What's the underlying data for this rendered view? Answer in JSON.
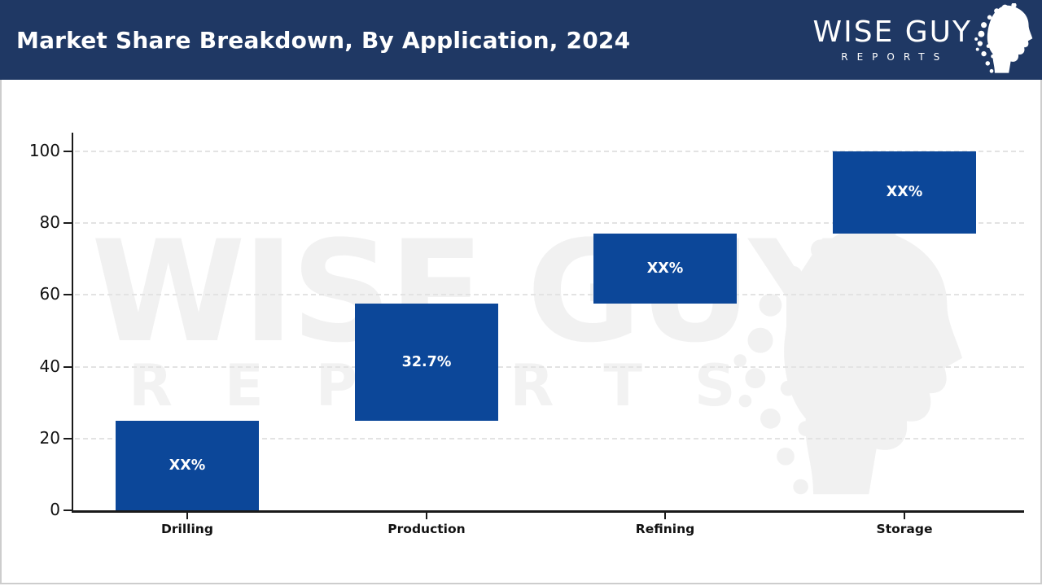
{
  "header": {
    "title": "Market Share Breakdown, By Application, 2024",
    "bg_color": "#1f3864",
    "title_color": "#ffffff",
    "logo": {
      "brand": "WISE GUY",
      "sub": "REPORTS"
    }
  },
  "watermark": {
    "brand": "WISE GUY",
    "sub": "REPORTS"
  },
  "chart_data": {
    "type": "bar",
    "subtype": "waterfall",
    "title": "Market Share Breakdown, By Application, 2024",
    "categories": [
      "Drilling",
      "Production",
      "Refining",
      "Storage"
    ],
    "segments": [
      {
        "category": "Drilling",
        "start": 0.0,
        "end": 25.0,
        "value": 25.0,
        "label": "XX%"
      },
      {
        "category": "Production",
        "start": 25.0,
        "end": 57.7,
        "value": 32.7,
        "label": "32.7%"
      },
      {
        "category": "Refining",
        "start": 57.7,
        "end": 77.2,
        "value": 19.5,
        "label": "XX%"
      },
      {
        "category": "Storage",
        "start": 77.2,
        "end": 100.0,
        "value": 22.8,
        "label": "XX%"
      }
    ],
    "xlabel": "",
    "ylabel": "",
    "yticks": [
      0,
      20,
      40,
      60,
      80,
      100
    ],
    "ylim": [
      0,
      105
    ],
    "grid": "horizontal-dashed",
    "legend": null,
    "colors": {
      "bar": "#0c4799",
      "bar_label": "#ffffff",
      "grid": "#e3e3e3",
      "axis": "#1a1a1a",
      "tick_text": "#111111",
      "watermark": "#f1f1f1"
    }
  }
}
